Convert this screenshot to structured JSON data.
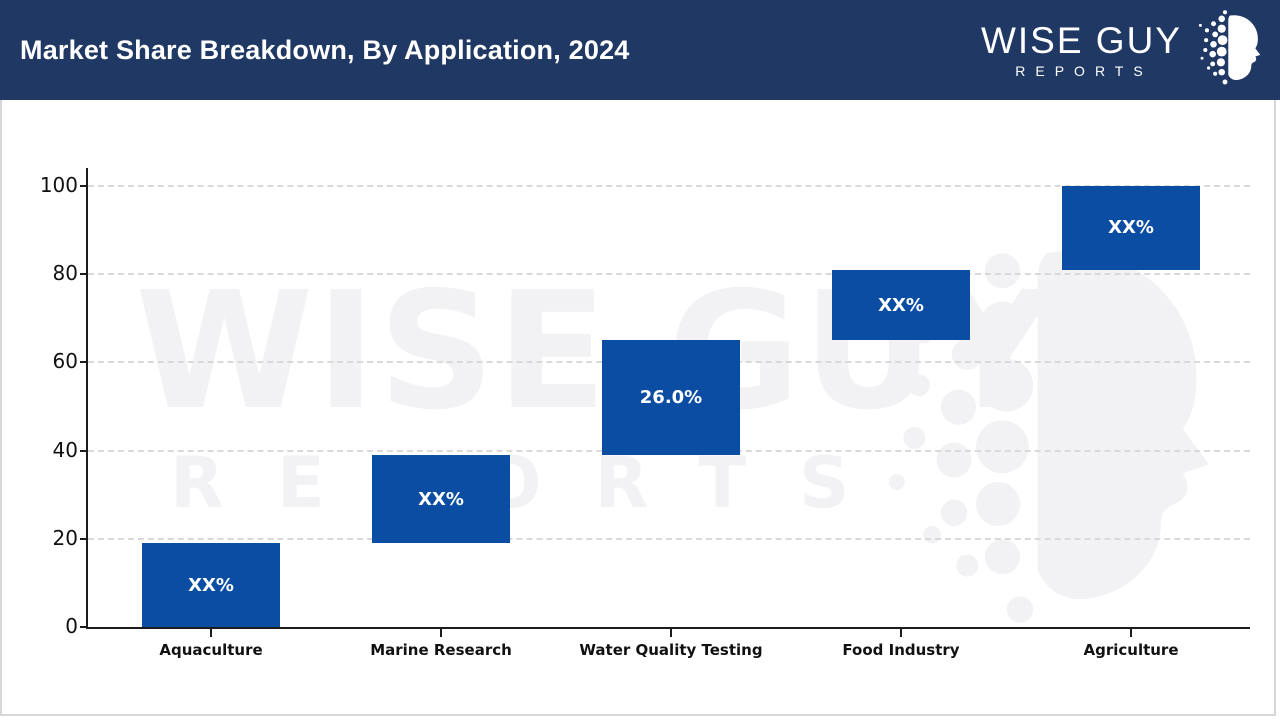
{
  "header": {
    "title": "Market Share Breakdown, By Application, 2024",
    "logo": {
      "line1": "WISE GUY",
      "line2": "REPORTS"
    }
  },
  "watermark": {
    "line1": "WISE GUY",
    "line2": "REPORTS"
  },
  "colors": {
    "header_bg": "#203864",
    "bar": "#0b4da2",
    "grid": "#d9d9d9",
    "axis": "#1c1c1c",
    "bar_label": "#ffffff",
    "watermark": "#f2f2f4"
  },
  "chart_data": {
    "type": "bar",
    "subtype": "waterfall",
    "title": "Market Share Breakdown, By Application, 2024",
    "categories": [
      "Aquaculture",
      "Marine Research",
      "Water Quality Testing",
      "Food Industry",
      "Agriculture"
    ],
    "segments": [
      {
        "category": "Aquaculture",
        "start": 0,
        "end": 19,
        "label": "XX%"
      },
      {
        "category": "Marine Research",
        "start": 19,
        "end": 39,
        "label": "XX%"
      },
      {
        "category": "Water Quality Testing",
        "start": 39,
        "end": 65,
        "label": "26.0%"
      },
      {
        "category": "Food Industry",
        "start": 65,
        "end": 81,
        "label": "XX%"
      },
      {
        "category": "Agriculture",
        "start": 81,
        "end": 100,
        "label": "XX%"
      }
    ],
    "ylim": [
      0,
      100
    ],
    "yticks": [
      0,
      20,
      40,
      60,
      80,
      100
    ],
    "xlabel": "",
    "ylabel": "",
    "grid": "horizontal-dashed",
    "legend": "none"
  }
}
